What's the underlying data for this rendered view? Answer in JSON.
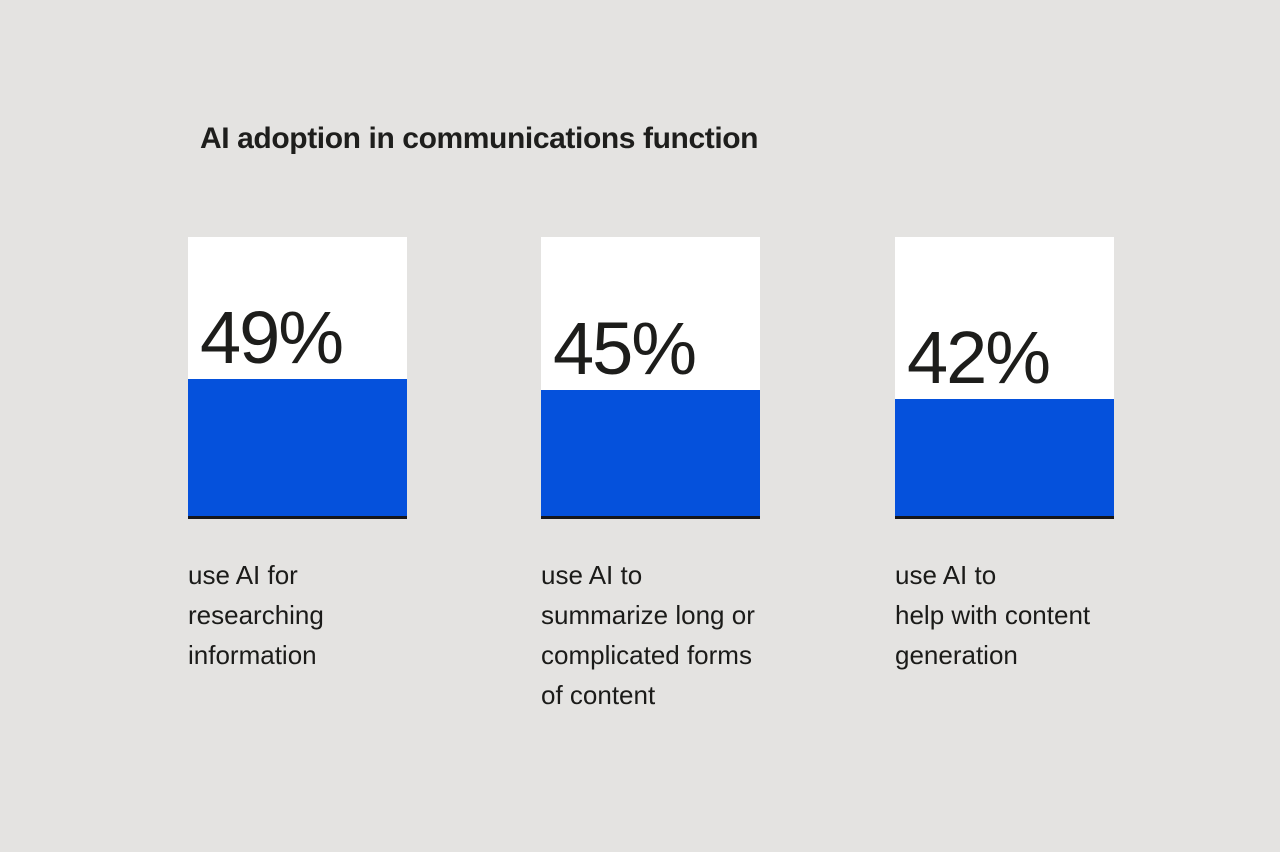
{
  "title": "AI adoption in communications function",
  "chart_data": {
    "type": "bar",
    "title": "AI adoption in communications function",
    "categories": [
      "use AI for researching information",
      "use AI to summarize long or complicated forms of content",
      "use AI to help with content generation"
    ],
    "values": [
      49,
      45,
      42
    ],
    "unit": "%",
    "value_labels": [
      "49%",
      "45%",
      "42%"
    ],
    "ylim": [
      0,
      100
    ],
    "grid": false,
    "legend": false,
    "layout": "three white cards with bottom-anchored blue fills proportional to value; value label sits above each fill; caption below each card"
  },
  "cards": [
    {
      "value_label": "49%",
      "pct": 49,
      "caption": "use AI for\nresearching\ninformation"
    },
    {
      "value_label": "45%",
      "pct": 45,
      "caption": "use AI to\nsummarize long or\ncomplicated forms\nof content"
    },
    {
      "value_label": "42%",
      "pct": 42,
      "caption": "use AI to\nhelp with content\ngeneration"
    }
  ],
  "colors": {
    "background": "#E4E3E1",
    "card_background": "#FFFFFF",
    "fill_blue": "#0551DC",
    "baseline_dark": "#16161B",
    "text_dark": "#1C1C1A"
  }
}
